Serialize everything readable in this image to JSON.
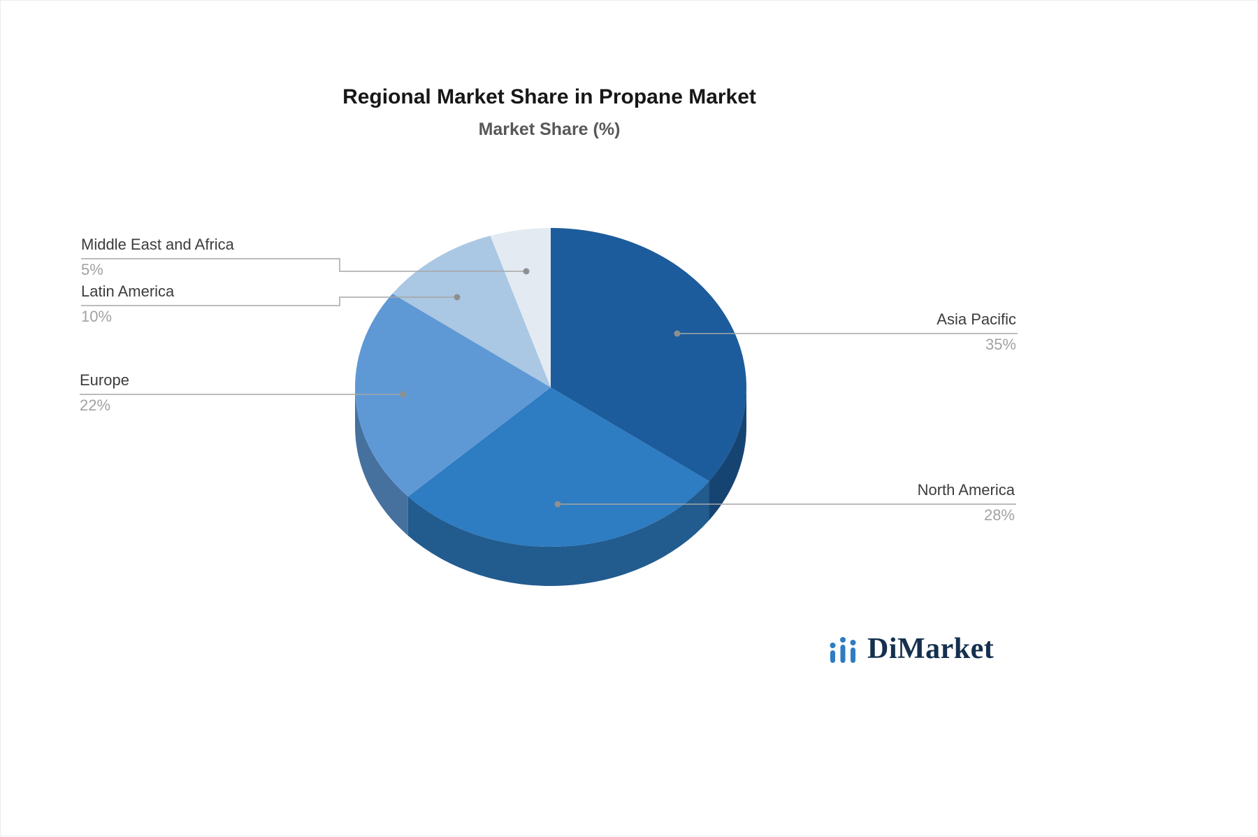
{
  "chart_data": {
    "type": "pie",
    "style": "3d-pie",
    "title": "Regional Market Share in Propane Market",
    "subtitle": "Market Share (%)",
    "unit": "%",
    "legend_position": "none",
    "labels": "leader-lines",
    "segments": [
      {
        "label": "Asia Pacific",
        "value": 35,
        "color": "#1c5c9c"
      },
      {
        "label": "North America",
        "value": 28,
        "color": "#2e7cc1"
      },
      {
        "label": "Europe",
        "value": 22,
        "color": "#5f99d5"
      },
      {
        "label": "Latin America",
        "value": 10,
        "color": "#aac7e3"
      },
      {
        "label": "Middle East and Africa",
        "value": 5,
        "color": "#e3eaf2"
      }
    ]
  },
  "branding": {
    "logo_text": "DiMarket",
    "logo_icon": "bar-chart-icon",
    "logo_text_color": "#14304e",
    "logo_icon_color": "#2e7cc1"
  }
}
